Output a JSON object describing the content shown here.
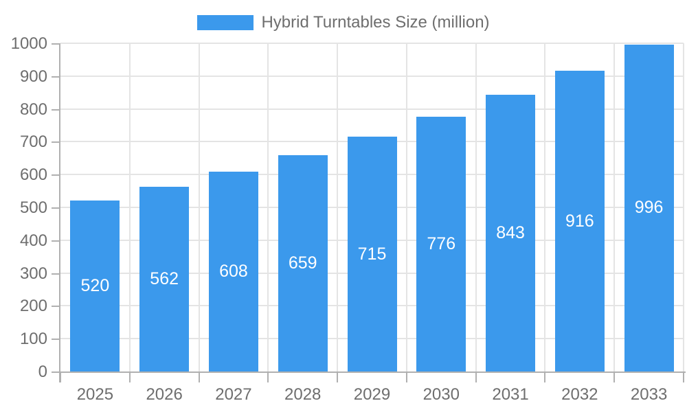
{
  "legend": {
    "label": "Hybrid Turntables Size (million)"
  },
  "chart_data": {
    "type": "bar",
    "title": "Hybrid Turntables Size (million)",
    "categories": [
      "2025",
      "2026",
      "2027",
      "2028",
      "2029",
      "2030",
      "2031",
      "2032",
      "2033"
    ],
    "values": [
      520,
      562,
      608,
      659,
      715,
      776,
      843,
      916,
      996
    ],
    "series": [
      {
        "name": "Hybrid Turntables Size (million)",
        "values": [
          520,
          562,
          608,
          659,
          715,
          776,
          843,
          916,
          996
        ]
      }
    ],
    "xlabel": "",
    "ylabel": "",
    "ylim": [
      0,
      1000
    ],
    "y_ticks": [
      0,
      100,
      200,
      300,
      400,
      500,
      600,
      700,
      800,
      900,
      1000
    ],
    "grid": true,
    "legend_position": "top",
    "value_labels_inside_bars": true
  },
  "colors": {
    "bar": "#3B99EC",
    "grid": "#E4E4E4",
    "axis": "#B0B0B0",
    "text": "#6E6E6E",
    "value_label": "#FFFFFF"
  }
}
